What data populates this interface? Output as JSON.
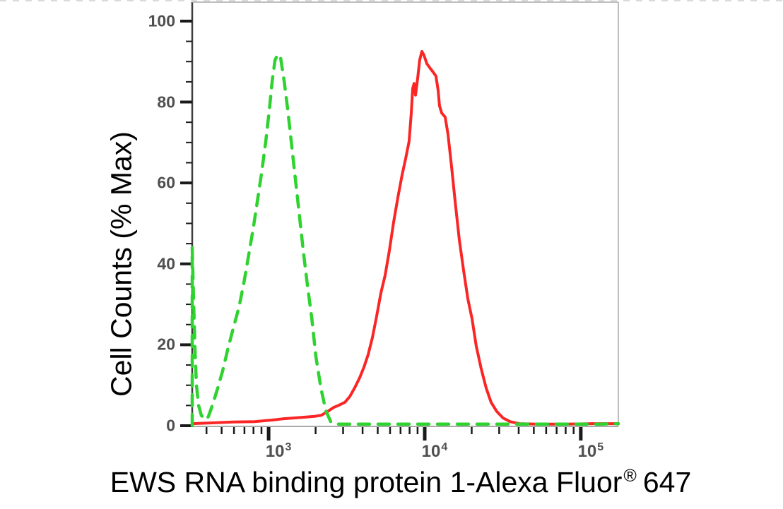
{
  "figure": {
    "background": "#ffffff",
    "top_border_color": "#dadada"
  },
  "style": {
    "tick_label_color": "#4f4f4f",
    "axis_text_color": "#000000",
    "left_spine_color": "#3d3d3d",
    "light_spine_color": "#a9a9a9",
    "tick_color": "#1a1a1a"
  },
  "chart_data": {
    "type": "line",
    "subtype": "flow-cytometry-histogram-overlay",
    "title": "",
    "xlabel": "EWS RNA binding protein 1-Alexa Fluor",
    "xlabel_registered_mark": "®",
    "xlabel_suffix": "647",
    "ylabel": "Cell Counts (% Max)",
    "grid": false,
    "legend": null,
    "x_axis": {
      "scale": "log10",
      "range": [
        324,
        174000
      ],
      "major_ticks": [
        {
          "value": 1000,
          "label_base": "10",
          "label_exponent": "3"
        },
        {
          "value": 10000,
          "label_base": "10",
          "label_exponent": "4"
        },
        {
          "value": 100000,
          "label_base": "10",
          "label_exponent": "5"
        }
      ],
      "minor_ticks_per_decade": [
        2,
        3,
        4,
        5,
        6,
        7,
        8,
        9
      ]
    },
    "y_axis": {
      "scale": "linear",
      "range": [
        0,
        104.7
      ],
      "major_ticks": [
        0,
        20,
        40,
        60,
        80,
        100
      ],
      "minor_tick_step": 5
    },
    "series": [
      {
        "id": "red-solid-curve",
        "line_style": "solid",
        "color": "#fa2626",
        "line_width": 4,
        "points": [
          [
            324,
            0.5
          ],
          [
            435,
            0.7
          ],
          [
            594,
            0.9
          ],
          [
            813,
            1.0
          ],
          [
            1054,
            1.4
          ],
          [
            1230,
            1.7
          ],
          [
            1439,
            1.9
          ],
          [
            1682,
            2.1
          ],
          [
            1968,
            2.3
          ],
          [
            2185,
            2.6
          ],
          [
            2427,
            3.7
          ],
          [
            2607,
            4.5
          ],
          [
            2833,
            5.1
          ],
          [
            3082,
            5.8
          ],
          [
            3311,
            7.2
          ],
          [
            3565,
            9.4
          ],
          [
            3837,
            11.9
          ],
          [
            4083,
            14.5
          ],
          [
            4345,
            17.6
          ],
          [
            4624,
            21.8
          ],
          [
            4921,
            27.1
          ],
          [
            5238,
            32.8
          ],
          [
            5581,
            37.2
          ],
          [
            5940,
            43.3
          ],
          [
            6324,
            50.3
          ],
          [
            6730,
            56.4
          ],
          [
            7163,
            62.0
          ],
          [
            7551,
            66.0
          ],
          [
            7943,
            70.3
          ],
          [
            8204,
            77.3
          ],
          [
            8375,
            83.4
          ],
          [
            8551,
            84.6
          ],
          [
            8730,
            81.7
          ],
          [
            9016,
            86.0
          ],
          [
            9290,
            90.4
          ],
          [
            9594,
            92.5
          ],
          [
            9886,
            91.6
          ],
          [
            10320,
            89.5
          ],
          [
            10860,
            88.3
          ],
          [
            11320,
            87.4
          ],
          [
            11800,
            86.4
          ],
          [
            12190,
            82.9
          ],
          [
            12440,
            79.1
          ],
          [
            12850,
            77.3
          ],
          [
            13520,
            76.3
          ],
          [
            14100,
            72.1
          ],
          [
            14850,
            64.2
          ],
          [
            15660,
            55.5
          ],
          [
            16660,
            45.9
          ],
          [
            17740,
            38.4
          ],
          [
            18880,
            31.4
          ],
          [
            20100,
            26.4
          ],
          [
            21380,
            19.7
          ],
          [
            23010,
            14.1
          ],
          [
            24770,
            9.3
          ],
          [
            26610,
            5.8
          ],
          [
            28970,
            3.5
          ],
          [
            31770,
            1.9
          ],
          [
            35320,
            1.0
          ],
          [
            40360,
            0.5
          ],
          [
            52400,
            0.4
          ],
          [
            79500,
            0.4
          ],
          [
            120000,
            0.5
          ],
          [
            174000,
            0.5
          ]
        ]
      },
      {
        "id": "green-dashed-curve",
        "line_style": "dashed",
        "color": "#2fd32f",
        "line_width": 4.5,
        "points": [
          [
            324,
            0
          ],
          [
            324,
            44
          ],
          [
            331,
            30
          ],
          [
            338,
            18
          ],
          [
            345,
            10
          ],
          [
            356,
            5
          ],
          [
            371,
            2.5
          ],
          [
            397,
            1.5
          ],
          [
            412,
            2.3
          ],
          [
            435,
            4.9
          ],
          [
            472,
            9.3
          ],
          [
            508,
            13.6
          ],
          [
            547,
            18.8
          ],
          [
            594,
            24.1
          ],
          [
            646,
            29.3
          ],
          [
            695,
            35.4
          ],
          [
            747,
            42.4
          ],
          [
            795,
            48.5
          ],
          [
            847,
            55.5
          ],
          [
            902,
            62.5
          ],
          [
            959,
            70.3
          ],
          [
            1011,
            78.2
          ],
          [
            1054,
            85.2
          ],
          [
            1099,
            90.4
          ],
          [
            1146,
            91.8
          ],
          [
            1194,
            90.9
          ],
          [
            1258,
            85.2
          ],
          [
            1325,
            78.2
          ],
          [
            1396,
            70.3
          ],
          [
            1469,
            62.5
          ],
          [
            1566,
            52.9
          ],
          [
            1666,
            43.3
          ],
          [
            1774,
            34.6
          ],
          [
            1888,
            26.7
          ],
          [
            2009,
            17.1
          ],
          [
            2162,
            9.3
          ],
          [
            2327,
            3.7
          ],
          [
            2501,
            1.0
          ],
          [
            2691,
            0.4
          ],
          [
            3500,
            0.4
          ],
          [
            5900,
            0.4
          ],
          [
            9900,
            0.4
          ],
          [
            16700,
            0.4
          ],
          [
            28100,
            0.4
          ],
          [
            47200,
            0.4
          ],
          [
            79500,
            0.4
          ],
          [
            134000,
            0.4
          ],
          [
            174000,
            0.5
          ]
        ]
      }
    ]
  }
}
